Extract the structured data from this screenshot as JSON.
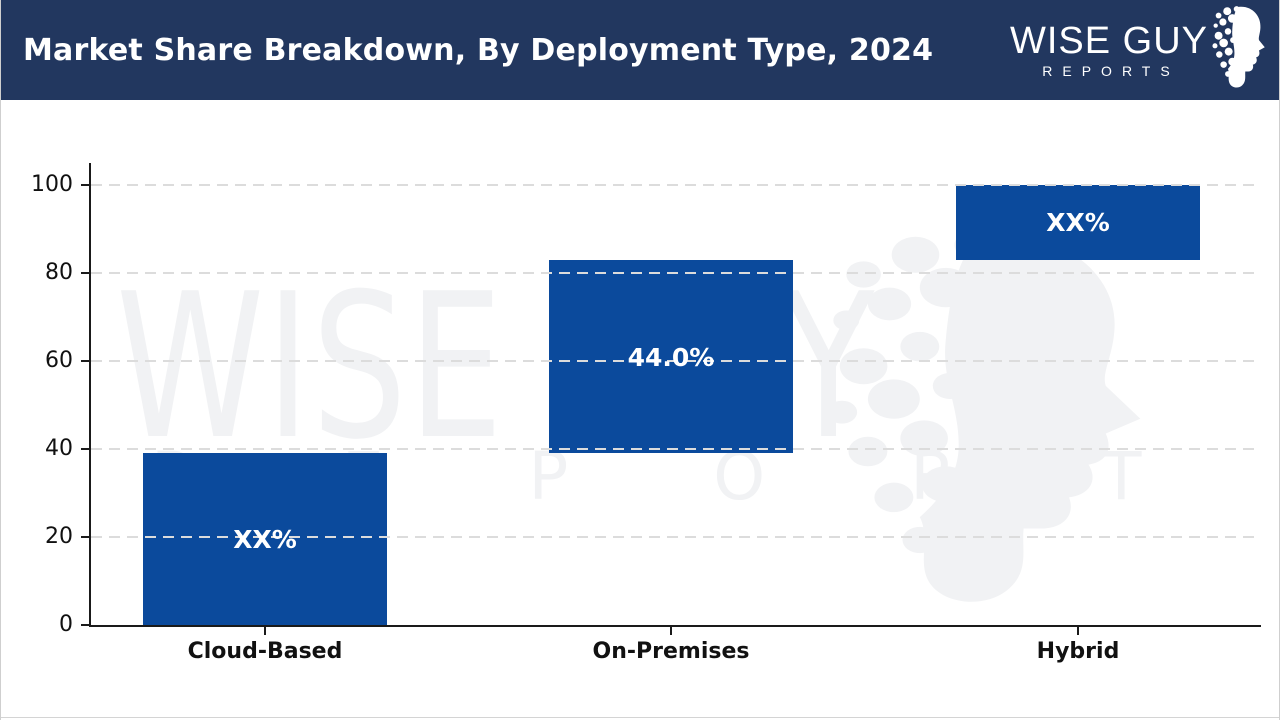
{
  "header": {
    "title": "Market Share Breakdown, By Deployment Type, 2024",
    "bg_color": "#22375f",
    "logo": {
      "wordmark": "WISE GUY",
      "sub": "REPORTS",
      "face_icon": "dotted-head-profile"
    }
  },
  "watermark": {
    "wordmark": "WISE GUY",
    "sub": "R E P O R T S",
    "color": "#f1f2f4"
  },
  "chart_data": {
    "type": "bar",
    "variant": "waterfall",
    "title": "Market Share Breakdown, By Deployment Type, 2024",
    "categories": [
      "Cloud-Based",
      "On-Premises",
      "Hybrid"
    ],
    "bars": [
      {
        "category": "Cloud-Based",
        "start": 0,
        "end": 39,
        "label": "XX%"
      },
      {
        "category": "On-Premises",
        "start": 39,
        "end": 83,
        "label": "44.0%"
      },
      {
        "category": "Hybrid",
        "start": 83,
        "end": 100,
        "label": "XX%"
      }
    ],
    "bar_color": "#0b4a9c",
    "label_color": "#ffffff",
    "yticks": [
      0,
      20,
      40,
      60,
      80,
      100
    ],
    "ylim": [
      0,
      105
    ],
    "grid": {
      "axis": "y",
      "style": "dashed",
      "color": "#dcdcdc"
    },
    "legend": "none",
    "xlabel": "",
    "ylabel": ""
  }
}
